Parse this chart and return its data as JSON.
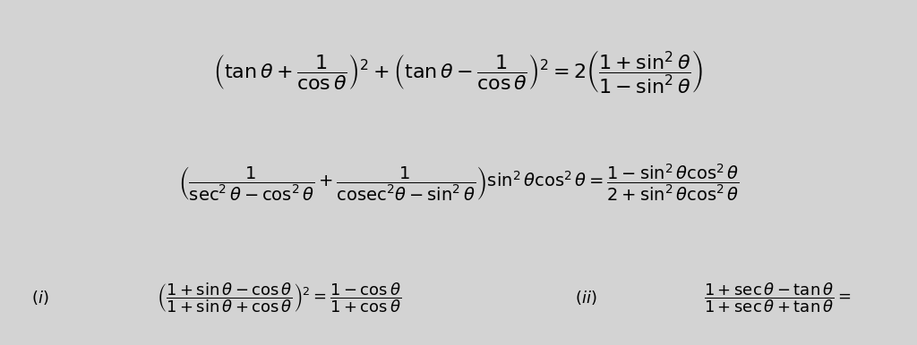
{
  "background_color": "#d3d3d3",
  "fontsize_line1": 16,
  "fontsize_line2": 14,
  "fontsize_line3": 13,
  "text_color": "black"
}
